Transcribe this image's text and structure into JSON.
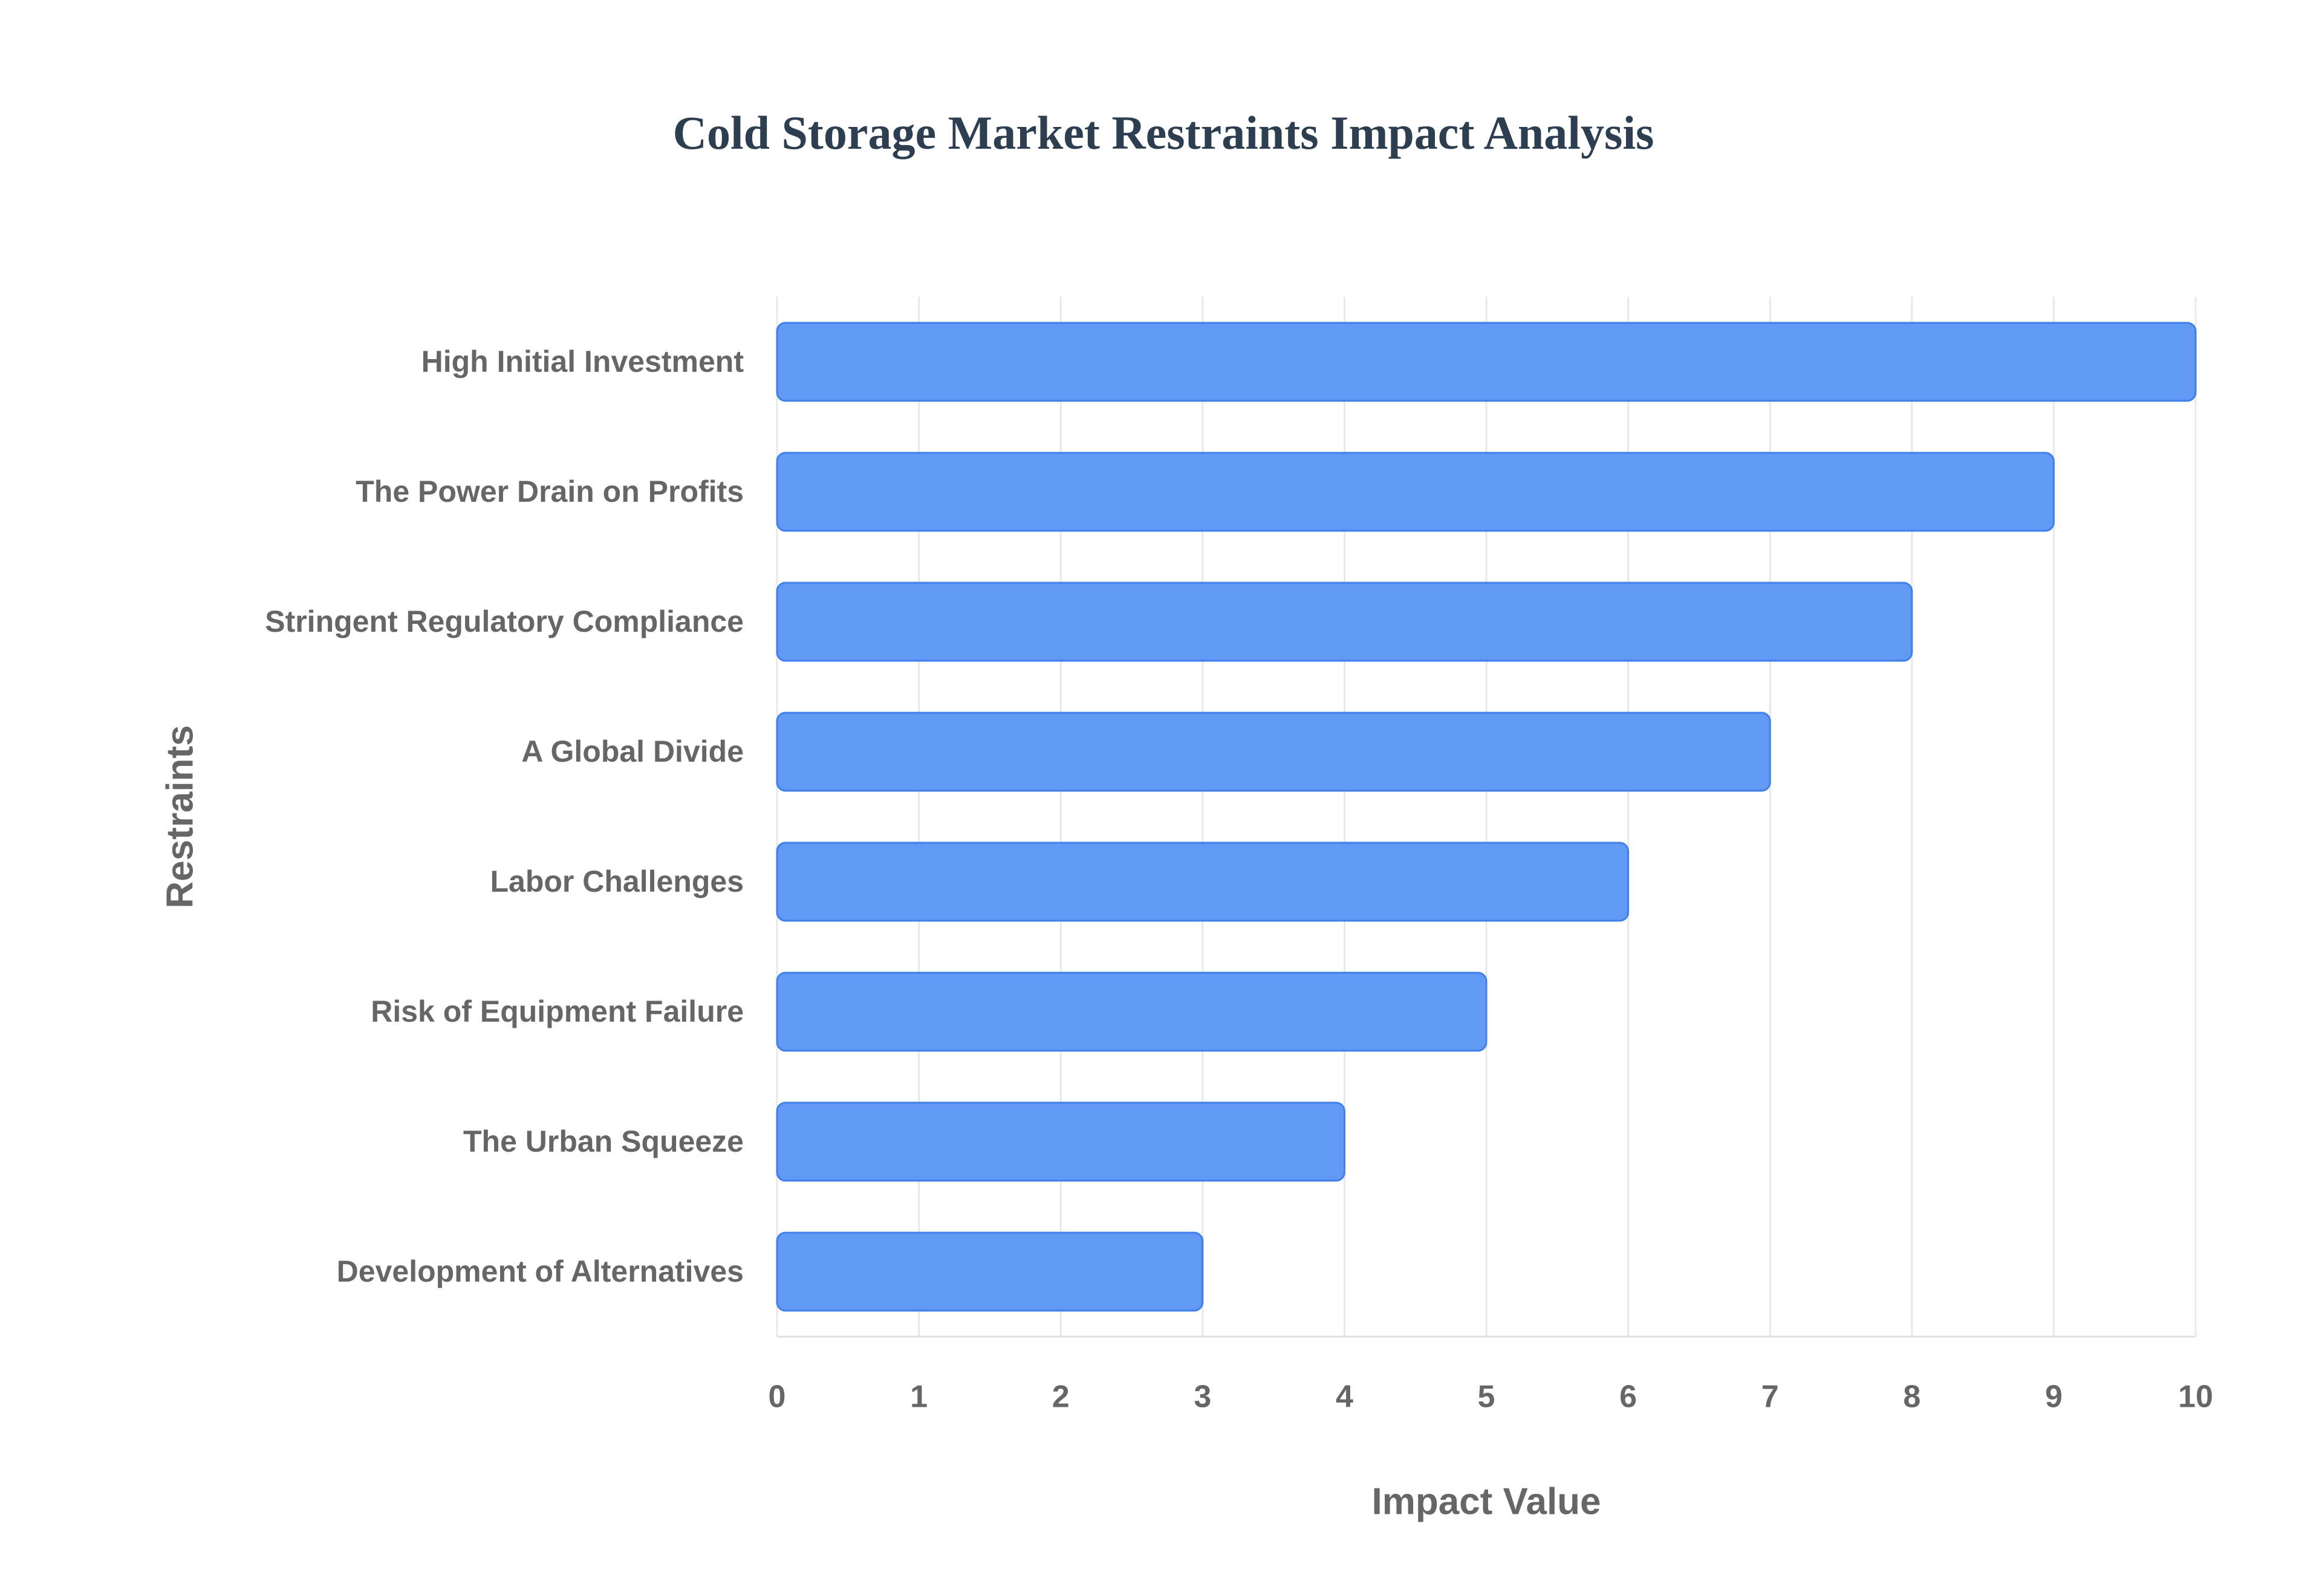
{
  "chart_data": {
    "type": "bar",
    "orientation": "horizontal",
    "title": "Cold Storage Market Restraints Impact Analysis",
    "x_label": "Impact Value",
    "y_label": "Restraints",
    "categories": [
      "High Initial Investment",
      "The Power Drain on Profits",
      "Stringent Regulatory Compliance",
      "A Global Divide",
      "Labor Challenges",
      "Risk of Equipment Failure",
      "The Urban Squeeze",
      "Development of Alternatives"
    ],
    "values": [
      10,
      9,
      8,
      7,
      6,
      5,
      4,
      3
    ],
    "color": "#6199f5",
    "border_color": "#3f80ea",
    "xlim": [
      0,
      10
    ],
    "xticks": [
      0,
      1,
      2,
      3,
      4,
      5,
      6,
      7,
      8,
      9,
      10
    ],
    "grid": true
  }
}
